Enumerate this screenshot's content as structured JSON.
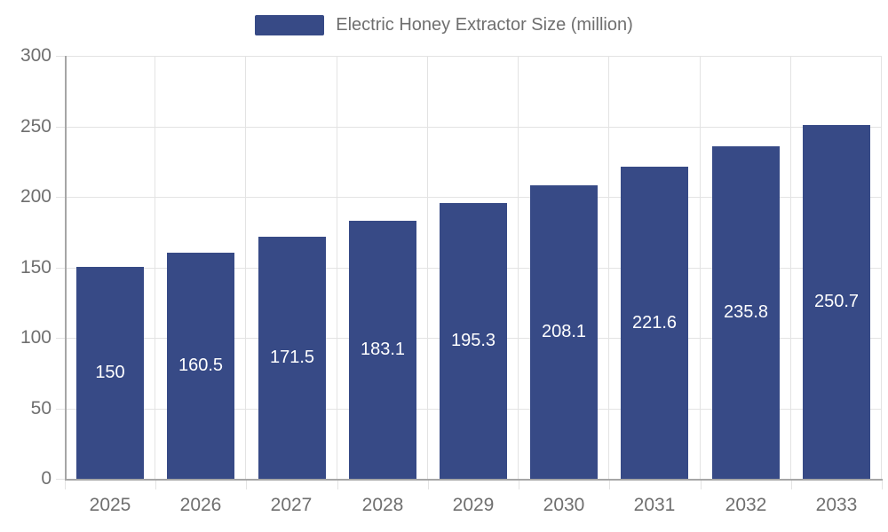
{
  "legend": {
    "label": "Electric Honey Extractor Size (million)"
  },
  "chart_data": {
    "type": "bar",
    "title": "Electric Honey Extractor Size (million)",
    "categories": [
      "2025",
      "2026",
      "2027",
      "2028",
      "2029",
      "2030",
      "2031",
      "2032",
      "2033"
    ],
    "values": [
      150,
      160.5,
      171.5,
      183.1,
      195.3,
      208.1,
      221.6,
      235.8,
      250.7
    ],
    "value_labels": [
      "150",
      "160.5",
      "171.5",
      "183.1",
      "195.3",
      "208.1",
      "221.6",
      "235.8",
      "250.7"
    ],
    "xlabel": "",
    "ylabel": "",
    "ylim": [
      0,
      300
    ],
    "yticks": [
      0,
      50,
      100,
      150,
      200,
      250,
      300
    ],
    "grid": true,
    "legend_position": "top",
    "bar_color": "#374a86",
    "value_label_color": "#ffffff",
    "axis_line_color": "#a6a6a6",
    "grid_line_color": "#e3e3e3",
    "tick_mark_color": "#e3e3e3",
    "tick_label_color": "#6f6f6f"
  }
}
